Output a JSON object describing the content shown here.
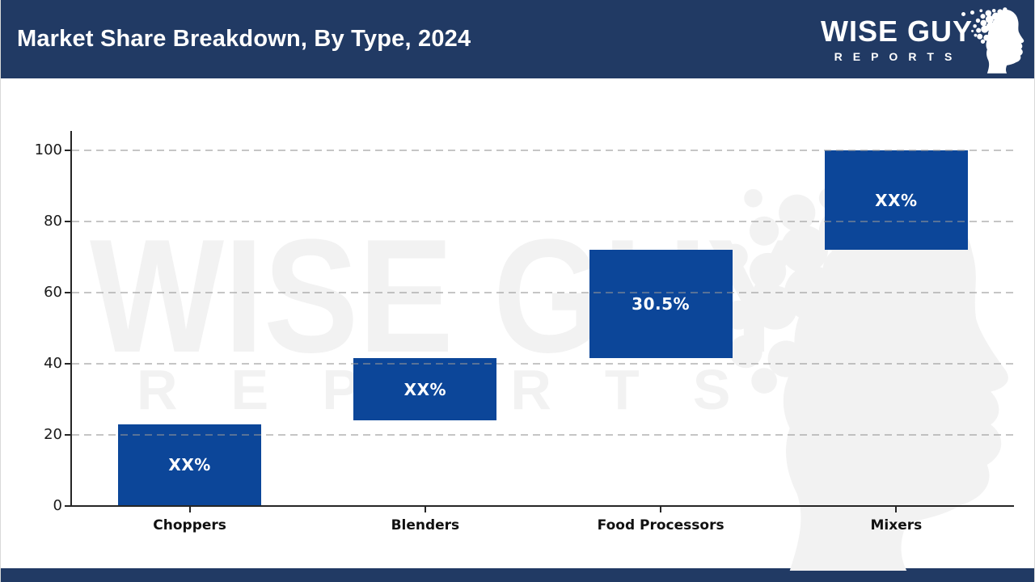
{
  "header": {
    "title": "Market Share Breakdown, By Type, 2024",
    "brand": {
      "name": "WISE GUY",
      "sub": "REPORTS"
    }
  },
  "watermark": {
    "line1": "WISE GUY",
    "line2": "REPORTS"
  },
  "colors": {
    "navy": "#213a64",
    "bar_blue": "#0c4699",
    "axis": "#262626",
    "tick_text": "#1a1a1a",
    "grid_dash": "#d0d0d0",
    "watermark": "#f2f2f2",
    "bar_label": "#ffffff",
    "title_text": "#ffffff"
  },
  "chart_data": {
    "type": "bar",
    "subtype": "floating-segment-waterfall",
    "title": "Market Share Breakdown, By Type, 2024",
    "categories": [
      "Choppers",
      "Blenders",
      "Food Processors",
      "Mixers"
    ],
    "segments": [
      {
        "category": "Choppers",
        "start": 0,
        "end": 23,
        "label": "XX%"
      },
      {
        "category": "Blenders",
        "start": 24,
        "end": 41.5,
        "label": "XX%"
      },
      {
        "category": "Food Processors",
        "start": 41.5,
        "end": 72,
        "label": "30.5%"
      },
      {
        "category": "Mixers",
        "start": 72,
        "end": 100,
        "label": "XX%"
      }
    ],
    "ylim": [
      0,
      100
    ],
    "yticks": [
      0,
      20,
      40,
      60,
      80,
      100
    ],
    "xlabel": "",
    "ylabel": "",
    "grid": "horizontal-dashed",
    "legend": "none",
    "bar_color": "#0c4699",
    "bar_label_color": "#ffffff"
  }
}
